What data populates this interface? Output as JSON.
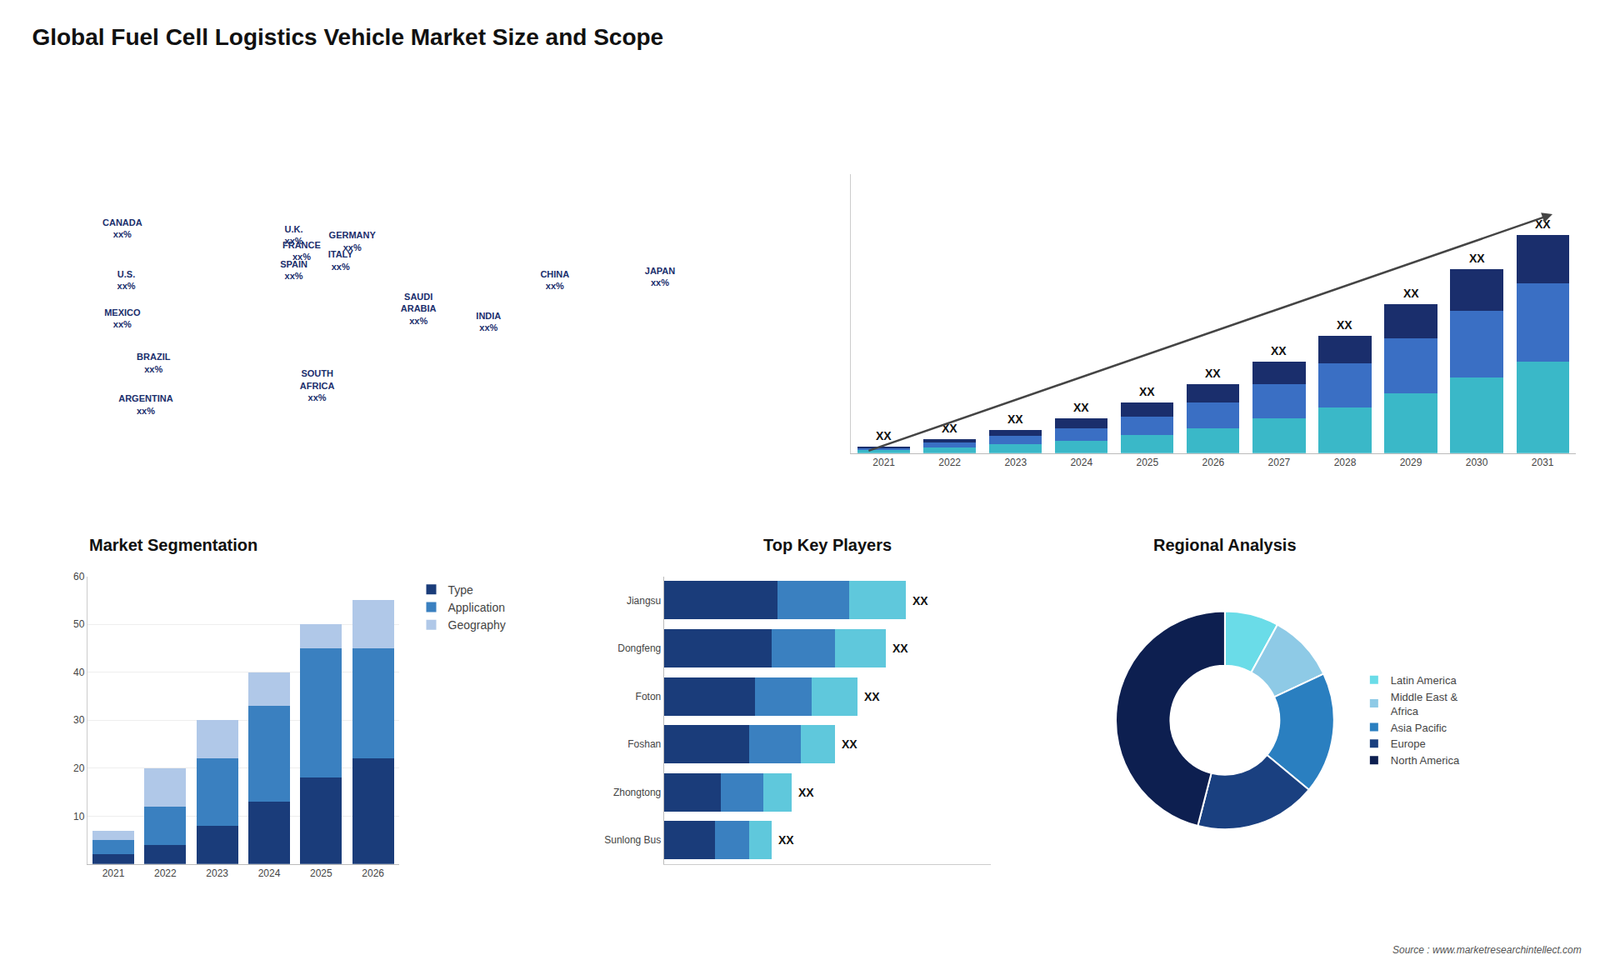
{
  "title": "Global Fuel Cell Logistics Vehicle Market Size and Scope",
  "annotations": [
    "Source : www.marketresearchintellect.com"
  ],
  "chart_data": [
    {
      "type": "map",
      "labels": [
        "CANADA\nxx%",
        "U.S.\nxx%",
        "MEXICO\nxx%",
        "BRAZIL\nxx%",
        "ARGENTINA\nxx%",
        "U.K.\nxx%",
        "FRANCE\nxx%",
        "SPAIN\nxx%",
        "GERMANY\nxx%",
        "ITALY\nxx%",
        "SAUDI\nARABIA\nxx%",
        "SOUTH\nAFRICA\nxx%",
        "CHINA\nxx%",
        "INDIA\nxx%",
        "JAPAN\nxx%"
      ],
      "color": "#1a2e6c"
    },
    {
      "type": "bar",
      "stacked": true,
      "categories": [
        "2021",
        "2022",
        "2023",
        "2024",
        "2025",
        "2026",
        "2027",
        "2028",
        "2029",
        "2030",
        "2031"
      ],
      "series": [
        {
          "color": "#3ab8c8",
          "values": [
            0.15,
            0.25,
            0.4,
            0.55,
            0.8,
            1.1,
            1.5,
            2.0,
            2.6,
            3.3,
            4.0
          ]
        },
        {
          "color": "#3a6fc4",
          "values": [
            0.1,
            0.2,
            0.35,
            0.55,
            0.8,
            1.1,
            1.5,
            1.9,
            2.4,
            2.9,
            3.4
          ]
        },
        {
          "color": "#1a2e6c",
          "values": [
            0.05,
            0.15,
            0.25,
            0.4,
            0.6,
            0.8,
            1.0,
            1.2,
            1.5,
            1.8,
            2.1
          ]
        }
      ],
      "ylim": [
        0,
        12.16
      ],
      "yticks": [],
      "tick_labels": "x",
      "grid": false,
      "annotations": [
        "XX",
        "XX",
        "XX",
        "XX",
        "XX",
        "XX",
        "XX",
        "XX",
        "XX",
        "XX",
        "XX"
      ]
    },
    {
      "type": "bar",
      "title": "Market Segmentation",
      "stacked": true,
      "categories": [
        "2021",
        "2022",
        "2023",
        "2024",
        "2025",
        "2026"
      ],
      "series": [
        {
          "name": "Type",
          "color": "#1a3c7a",
          "values": [
            2,
            4,
            8,
            13,
            18,
            22
          ]
        },
        {
          "name": "Application",
          "color": "#3a80c0",
          "values": [
            3,
            8,
            14,
            20,
            27,
            23
          ]
        },
        {
          "name": "Geography",
          "color": "#b0c8e8",
          "values": [
            2,
            8,
            8,
            7,
            5,
            10
          ]
        }
      ],
      "ylim": [
        0,
        60
      ],
      "yticks": [
        10,
        20,
        30,
        40,
        50,
        60
      ],
      "grid": true,
      "legend": "right"
    },
    {
      "type": "bar",
      "title": "Top Key Players",
      "orientation": "horizontal",
      "stacked": true,
      "categories": [
        "Jiangsu",
        "Dongfeng",
        "Foton",
        "Foshan",
        "Zhongtong",
        "Sunlong Bus"
      ],
      "series": [
        {
          "color": "#1a3c7a",
          "values": [
            4.0,
            3.8,
            3.2,
            3.0,
            2.0,
            1.8
          ]
        },
        {
          "color": "#3a80c0",
          "values": [
            2.5,
            2.2,
            2.0,
            1.8,
            1.5,
            1.2
          ]
        },
        {
          "color": "#5fc8dc",
          "values": [
            2.0,
            1.8,
            1.6,
            1.2,
            1.0,
            0.8
          ]
        }
      ],
      "xlim": [
        0,
        11.5
      ],
      "xticks": [],
      "tick_labels": "y",
      "grid": false,
      "annotations": [
        "XX",
        "XX",
        "XX",
        "XX",
        "XX",
        "XX"
      ]
    },
    {
      "type": "donut",
      "title": "Regional Analysis",
      "categories": [
        "Latin America",
        "Middle East &\nAfrica",
        "Asia Pacific",
        "Europe",
        "North America"
      ],
      "values": [
        8,
        10,
        18,
        18,
        46
      ],
      "colors": [
        "#6adce8",
        "#8ecae6",
        "#2a7fc0",
        "#1a4080",
        "#0d1f50"
      ],
      "legend": "right"
    }
  ]
}
